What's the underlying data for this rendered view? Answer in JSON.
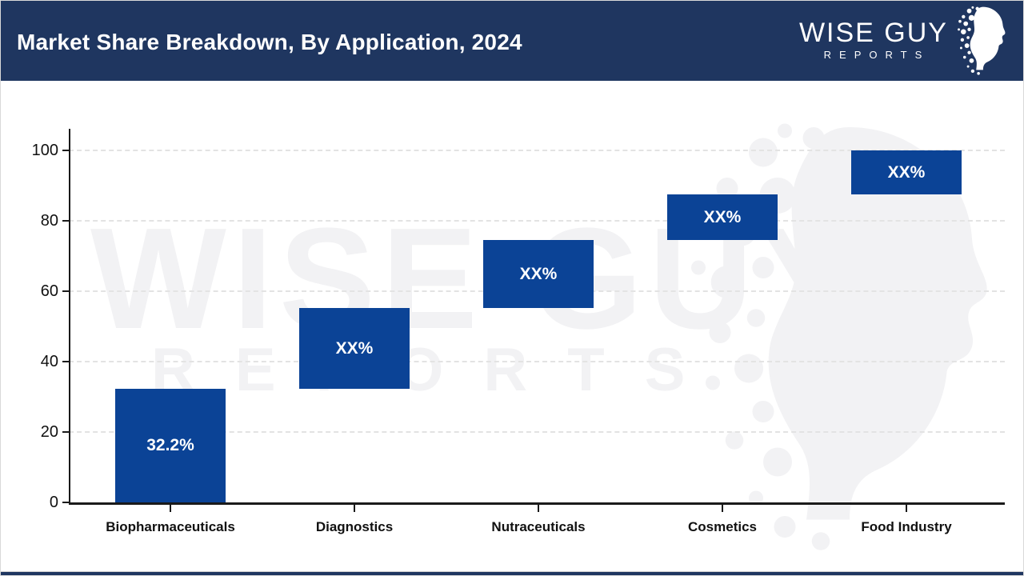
{
  "header": {
    "title": "Market Share Breakdown, By Application, 2024",
    "logo": {
      "line1": "WISE GUY",
      "line2": "REPORTS"
    }
  },
  "watermark": {
    "line1": "WISE GUY",
    "line2": "REPORTS"
  },
  "chart_data": {
    "type": "bar",
    "subtype": "waterfall",
    "title": "Market Share Breakdown, By Application, 2024",
    "xlabel": "",
    "ylabel": "",
    "categories": [
      "Biopharmaceuticals",
      "Diagnostics",
      "Nutraceuticals",
      "Cosmetics",
      "Food Industry"
    ],
    "segments": [
      {
        "category": "Biopharmaceuticals",
        "start": 0,
        "end": 32.2,
        "label": "32.2%"
      },
      {
        "category": "Diagnostics",
        "start": 32.2,
        "end": 55.2,
        "label": "XX%"
      },
      {
        "category": "Nutraceuticals",
        "start": 55.2,
        "end": 74.5,
        "label": "XX%"
      },
      {
        "category": "Cosmetics",
        "start": 74.5,
        "end": 87.5,
        "label": "XX%"
      },
      {
        "category": "Food Industry",
        "start": 87.5,
        "end": 100,
        "label": "XX%"
      }
    ],
    "yticks": [
      0,
      20,
      40,
      60,
      80,
      100
    ],
    "ylim": [
      0,
      106
    ],
    "grid": "horizontal-dashed",
    "legend": "none",
    "bar_color": "#0b4396",
    "bar_label_color": "#ffffff"
  },
  "colors": {
    "header_bg": "#1f3660",
    "bar": "#0b4396",
    "watermark": "#f2f2f4",
    "axis": "#1a1a1a",
    "gridline": "#e3e3e3"
  }
}
